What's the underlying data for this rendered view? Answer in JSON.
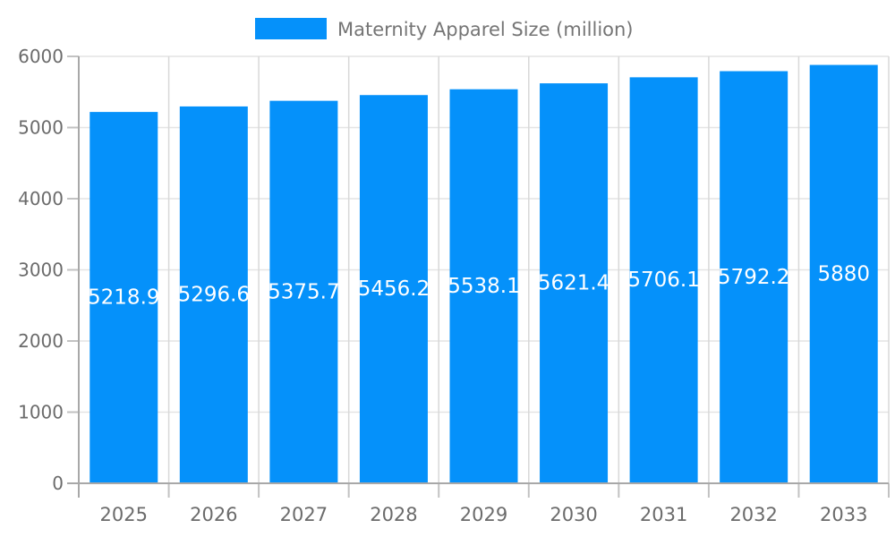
{
  "legend": {
    "label": "Maternity Apparel Size (million)"
  },
  "colors": {
    "bar": "#0591fa",
    "bar_label": "#ffffff",
    "axis_text": "#6b6b6b",
    "legend_text": "#757575",
    "axis_line": "#a8a8a8",
    "tick_line": "#c2c2c2",
    "grid_horizontal": "#e4e4e4",
    "grid_vertical": "#d8d8d8",
    "background": "#ffffff"
  },
  "chart_data": {
    "type": "bar",
    "title": "Maternity Apparel Size (million)",
    "categories": [
      "2025",
      "2026",
      "2027",
      "2028",
      "2029",
      "2030",
      "2031",
      "2032",
      "2033"
    ],
    "values": [
      5218.9,
      5296.6,
      5375.7,
      5456.2,
      5538.1,
      5621.4,
      5706.1,
      5792.2,
      5880
    ],
    "value_labels": [
      "5218.9",
      "5296.6",
      "5375.7",
      "5456.2",
      "5538.1",
      "5621.4",
      "5706.1",
      "5792.2",
      "5880"
    ],
    "xlabel": "",
    "ylabel": "",
    "ylim": [
      0,
      6000
    ],
    "y_ticks": [
      0,
      1000,
      2000,
      3000,
      4000,
      5000,
      6000
    ],
    "grid": true,
    "legend_position": "top",
    "value_label_position": "inside-center"
  }
}
